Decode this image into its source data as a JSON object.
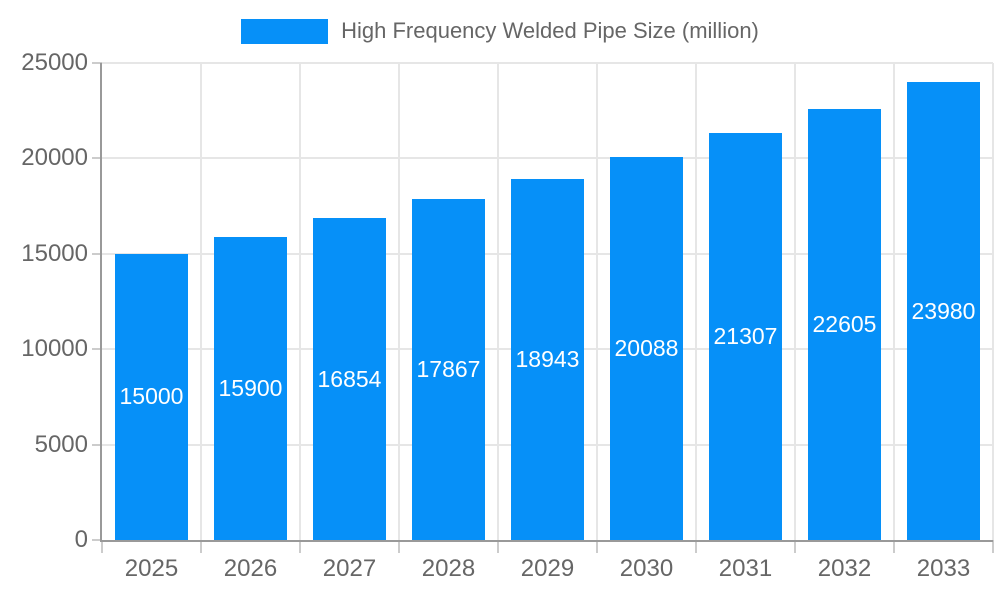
{
  "legend": {
    "items": [
      {
        "label": "High Frequency Welded Pipe Size (million)",
        "color": "#0690f8"
      }
    ]
  },
  "chart_data": {
    "type": "bar",
    "title": "",
    "xlabel": "",
    "ylabel": "",
    "categories": [
      "2025",
      "2026",
      "2027",
      "2028",
      "2029",
      "2030",
      "2031",
      "2032",
      "2033"
    ],
    "series": [
      {
        "name": "High Frequency Welded Pipe Size (million)",
        "color": "#0690f8",
        "values": [
          15000,
          15900,
          16854,
          17867,
          18943,
          20088,
          21307,
          22605,
          23980
        ]
      }
    ],
    "value_labels": [
      "15000",
      "15900",
      "16854",
      "17867",
      "18943",
      "20088",
      "21307",
      "22605",
      "23980"
    ],
    "ylim": [
      0,
      25000
    ],
    "yticks": [
      0,
      5000,
      10000,
      15000,
      20000,
      25000
    ],
    "ytick_labels": [
      "0",
      "5000",
      "10000",
      "15000",
      "20000",
      "25000"
    ],
    "grid": true,
    "legend_position": "top",
    "value_label_position": "inside-center",
    "colors": {
      "bar": "#0690f8",
      "axis_line": "#999999",
      "gridline": "#e6e6e6",
      "tick_mark": "#cccccc",
      "axis_label": "#666666",
      "value_label": "#ffffff",
      "background": "#ffffff"
    }
  }
}
